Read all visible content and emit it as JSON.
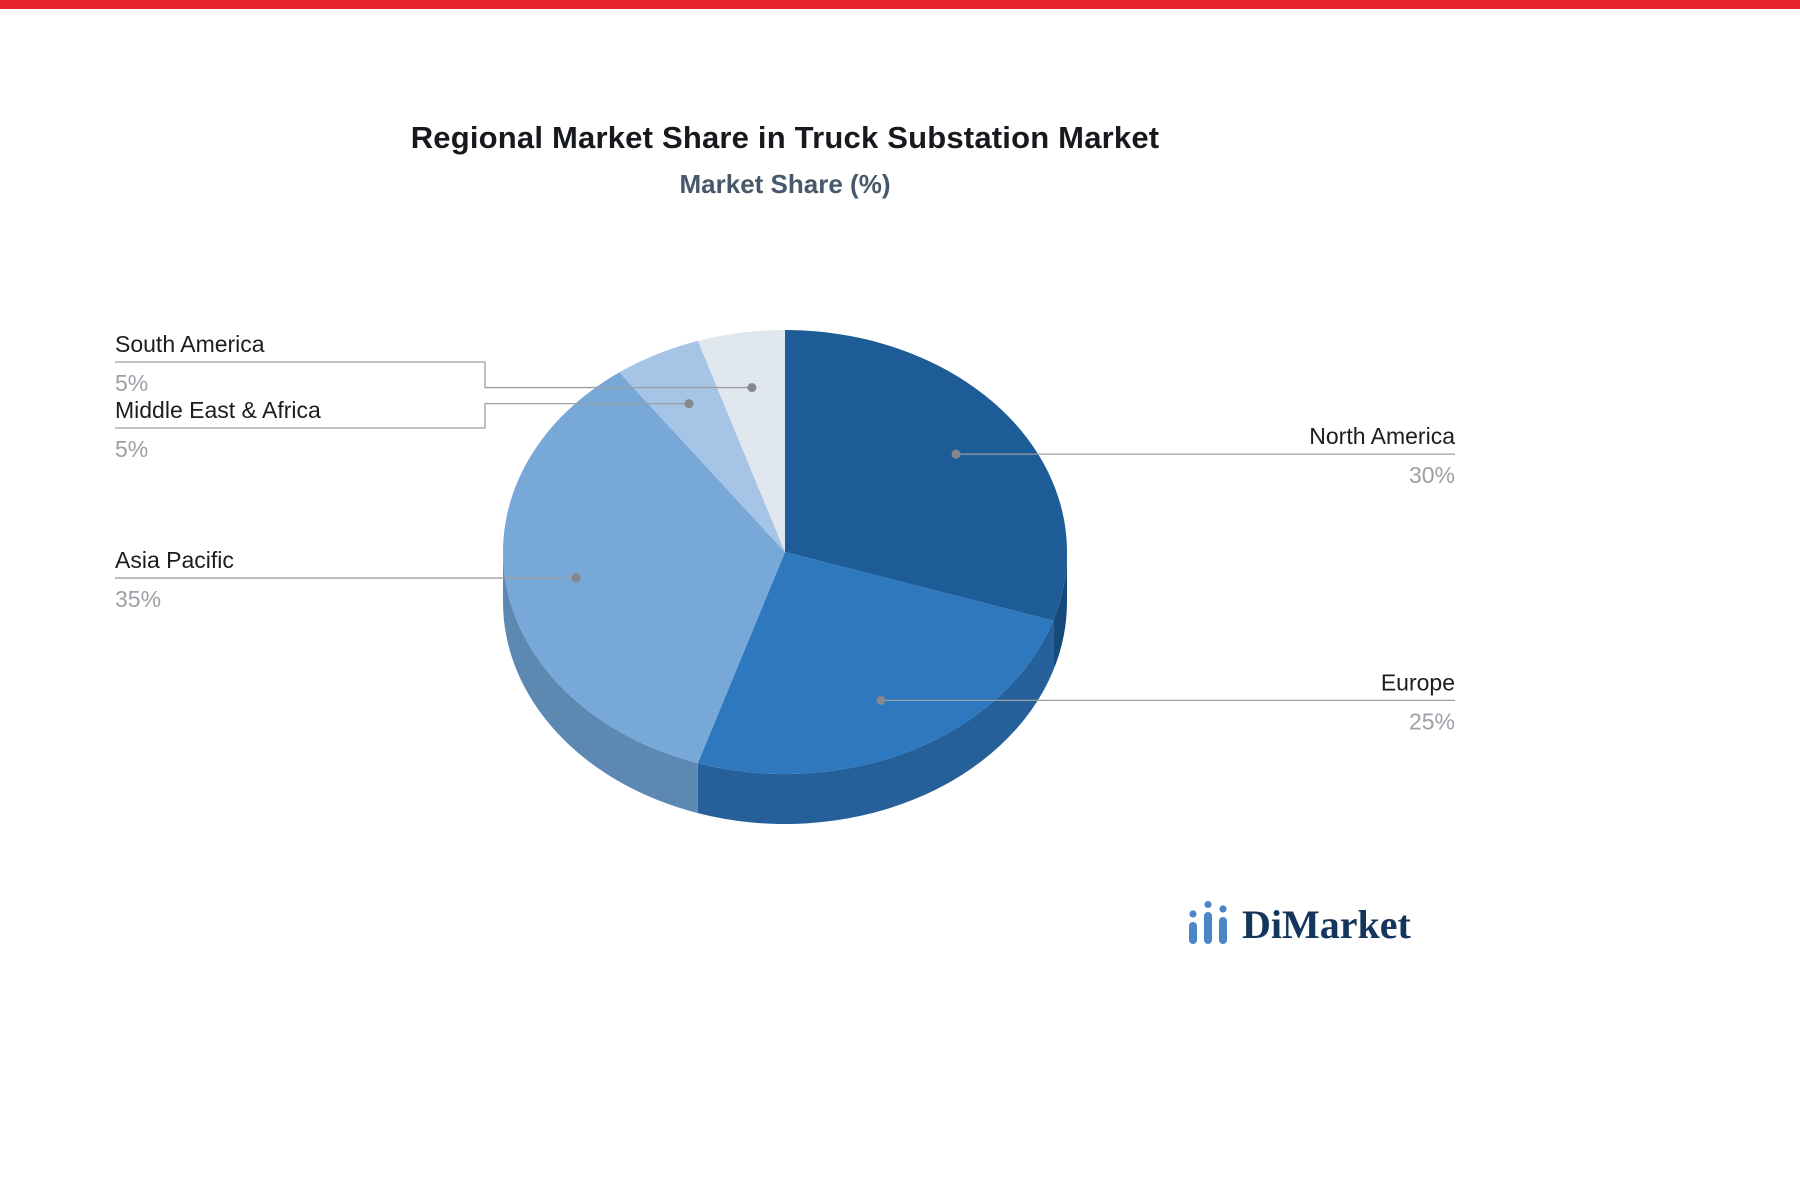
{
  "page": {
    "top_bar_color": "#e9252b",
    "background": "#ffffff"
  },
  "header": {
    "title": "Regional Market Share in Truck Substation Market",
    "subtitle": "Market Share (%)"
  },
  "chart_data": {
    "type": "pie",
    "style": "3d",
    "title": "Regional Market Share in Truck Substation Market",
    "subtitle": "Market Share (%)",
    "unit": "%",
    "start_angle_deg": 0,
    "direction": "clockwise",
    "legend_position": "none",
    "categories": [
      "North America",
      "Europe",
      "Asia Pacific",
      "Middle East & Africa",
      "South America"
    ],
    "values": [
      30,
      25,
      35,
      5,
      5
    ],
    "labels_displayed": [
      "30%",
      "25%",
      "35%",
      "5%",
      "5%"
    ],
    "colors": [
      "#1e5c97",
      "#2e78bf",
      "#78a8d8",
      "#a6c5e6",
      "#e0e7ee"
    ],
    "side_colors": [
      "#164a7b",
      "#25609a",
      "#5d88b2",
      "#87a8c9",
      "#c3cdd8"
    ],
    "label_text_color": "#1d1d1f",
    "value_text_color": "#9ba1a6",
    "leader_line_color": "#9b9fa3"
  },
  "logo": {
    "text": "DiMarket",
    "icon": "bar-chart-icon",
    "icon_color": "#4a86c8",
    "text_color": "#14365c"
  }
}
